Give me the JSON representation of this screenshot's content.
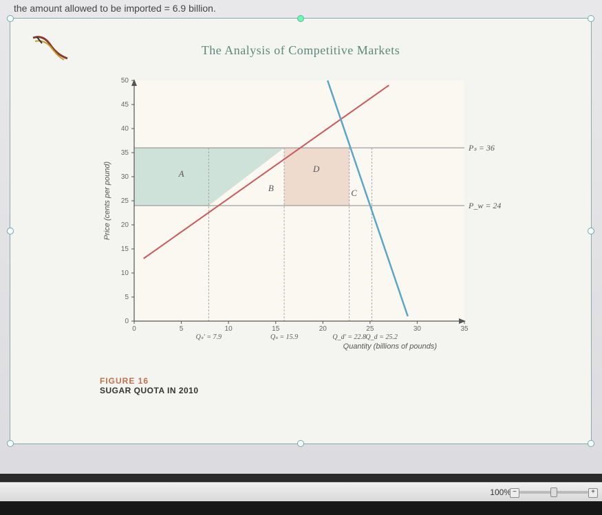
{
  "top_text": "the amount allowed to be imported = 6.9 billion.",
  "chart_title": "The Analysis of Competitive Markets",
  "figure_number": "FIGURE 16",
  "figure_caption": "SUGAR QUOTA IN 2010",
  "status": {
    "zoom": "100%"
  },
  "chart": {
    "type": "line",
    "y_axis": {
      "label": "Price (cents per pound)",
      "min": 0,
      "max": 50,
      "tick_step": 5,
      "ticks": [
        0,
        5,
        10,
        15,
        20,
        25,
        30,
        35,
        40,
        45,
        50
      ]
    },
    "x_axis": {
      "label": "Quantity (billions of pounds)",
      "min": 0,
      "max": 35,
      "tick_step": 5,
      "ticks": [
        0,
        5,
        10,
        15,
        20,
        25,
        30,
        35
      ]
    },
    "supply": {
      "color": "#c95a5a",
      "width": 2,
      "points": [
        [
          1,
          13
        ],
        [
          27,
          49
        ]
      ]
    },
    "demand": {
      "color": "#5aa6c9",
      "width": 2.5,
      "points": [
        [
          20.5,
          50
        ],
        [
          29,
          1
        ]
      ]
    },
    "h_lines": {
      "Ps": {
        "y": 36,
        "label": "Pₛ = 36",
        "color": "#888"
      },
      "Pw": {
        "y": 24,
        "label": "P_w = 24",
        "color": "#888"
      }
    },
    "v_lines": {
      "Qs_prime": {
        "x": 7.9,
        "label": "Qₛ' = 7.9"
      },
      "Qs": {
        "x": 15.9,
        "label": "Qₛ = 15.9"
      },
      "Qd_prime": {
        "x": 22.8,
        "label": "Q_d' = 22.8"
      },
      "Qd": {
        "x": 25.2,
        "label": "Q_d = 25.2"
      }
    },
    "regions": {
      "A": {
        "color": "#bcd9d0",
        "opacity": 0.7,
        "points": [
          [
            0,
            36
          ],
          [
            15.9,
            36
          ],
          [
            7.9,
            24
          ],
          [
            0,
            24
          ]
        ],
        "label_at": [
          5,
          30
        ]
      },
      "B": {
        "color": "none",
        "label_at": [
          14.5,
          27
        ]
      },
      "D": {
        "color": "#e9cfbf",
        "opacity": 0.7,
        "points": [
          [
            15.9,
            36
          ],
          [
            22.8,
            36
          ],
          [
            22.8,
            24
          ],
          [
            15.9,
            24
          ]
        ],
        "label_at": [
          19.3,
          31
        ]
      },
      "C": {
        "color": "none",
        "label_at": [
          23.3,
          26
        ]
      }
    },
    "background_color": "#faf8f0",
    "grid_color": "#d0d0c8"
  }
}
